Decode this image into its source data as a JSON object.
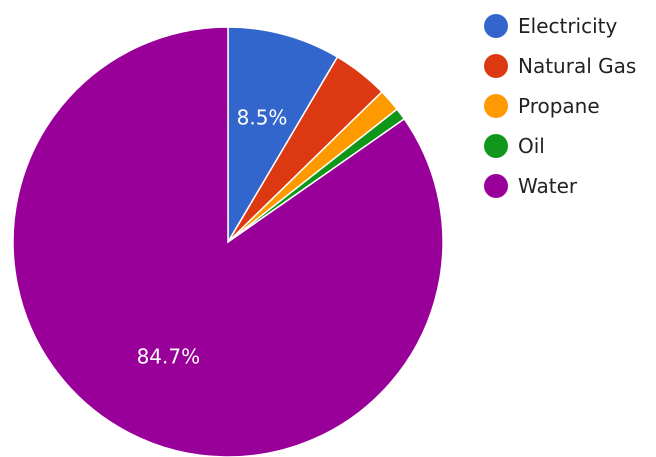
{
  "chart_data": {
    "type": "pie",
    "series": [
      {
        "name": "Electricity",
        "value": 8.5,
        "color": "#3366cc"
      },
      {
        "name": "Natural Gas",
        "value": 4.2,
        "color": "#dc3912"
      },
      {
        "name": "Propane",
        "value": 1.7,
        "color": "#ff9900"
      },
      {
        "name": "Oil",
        "value": 0.9,
        "color": "#109618"
      },
      {
        "name": "Water",
        "value": 84.7,
        "color": "#990099"
      }
    ],
    "data_labels": [
      "8.5%",
      "",
      "",
      "",
      "84.7%"
    ],
    "legend_position": "right"
  }
}
